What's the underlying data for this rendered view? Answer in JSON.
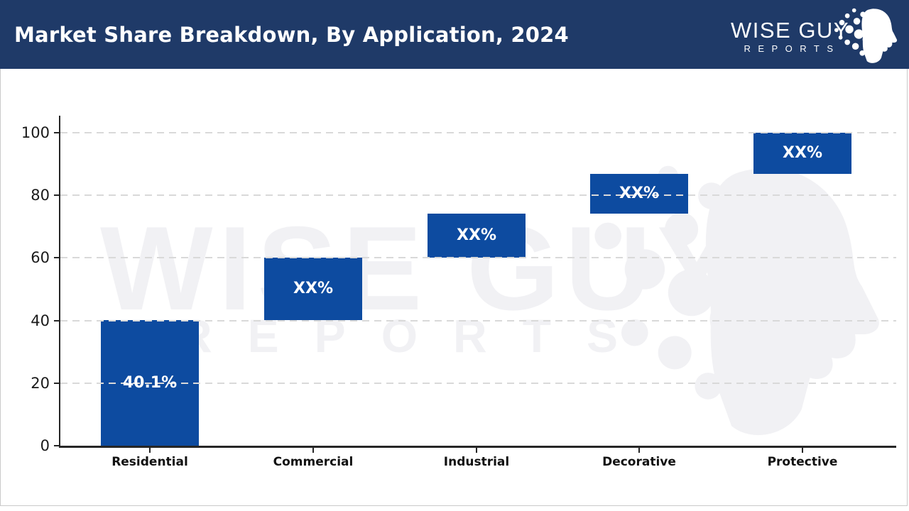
{
  "header": {
    "title": "Market Share Breakdown, By Application, 2024",
    "logo": {
      "line1": "WISE GUY",
      "line2": "REPORTS"
    }
  },
  "watermark": {
    "line1": "WISE GUY",
    "line2": "REPORTS"
  },
  "theme": {
    "header_bg": "#1f3a68",
    "bar_color": "#0d4ba0",
    "gridline_color": "#d9d9d9",
    "axis_color": "#262626",
    "bar_label_color": "#ffffff",
    "watermark_color": "#f1f1f4",
    "content_border": "#c9c9c9"
  },
  "chart_data": {
    "type": "bar",
    "variant": "waterfall",
    "title": "Market Share Breakdown, By Application, 2024",
    "categories": [
      "Residential",
      "Commercial",
      "Industrial",
      "Decorative",
      "Protective"
    ],
    "segments": [
      {
        "category": "Residential",
        "start": 0,
        "end": 40.1,
        "label": "40.1%"
      },
      {
        "category": "Commercial",
        "start": 40.1,
        "end": 60,
        "label": "XX%"
      },
      {
        "category": "Industrial",
        "start": 60,
        "end": 74.2,
        "label": "XX%"
      },
      {
        "category": "Decorative",
        "start": 74.2,
        "end": 86.9,
        "label": "XX%"
      },
      {
        "category": "Protective",
        "start": 86.9,
        "end": 100,
        "label": "XX%"
      }
    ],
    "y_ticks": [
      0,
      20,
      40,
      60,
      80,
      100
    ],
    "ylim": [
      0,
      105
    ],
    "xlabel": "",
    "ylabel": "",
    "grid": true,
    "grid_style": "dashed",
    "legend": false
  }
}
